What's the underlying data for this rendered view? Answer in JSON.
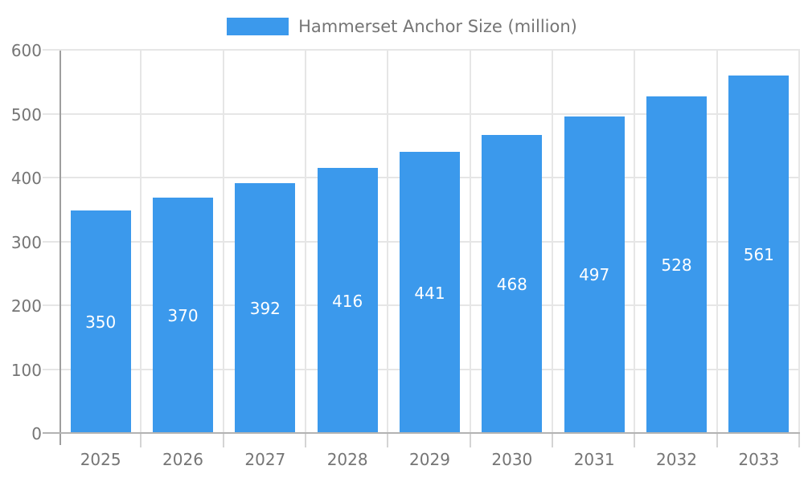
{
  "chart_data": {
    "type": "bar",
    "title": "Hammerset Anchor Size (million)",
    "legend_position": "top",
    "categories": [
      "2025",
      "2026",
      "2027",
      "2028",
      "2029",
      "2030",
      "2031",
      "2032",
      "2033"
    ],
    "series": [
      {
        "name": "Hammerset Anchor Size (million)",
        "values": [
          350,
          370,
          392,
          416,
          441,
          468,
          497,
          528,
          561
        ]
      }
    ],
    "value_labels_shown": true,
    "xlabel": "",
    "ylabel": "",
    "ylim": [
      0,
      600
    ],
    "yticks": [
      0,
      100,
      200,
      300,
      400,
      500,
      600
    ],
    "grid": true,
    "colors": {
      "bar": "#3b99ec",
      "value_label": "#ffffff",
      "axis_text": "#757575",
      "gridline": "#e6e6e6",
      "y_axis_line": "#9e9e9e",
      "baseline": "#b3b3b3",
      "x_tick": "#d4d4d4",
      "background": "#ffffff"
    }
  }
}
